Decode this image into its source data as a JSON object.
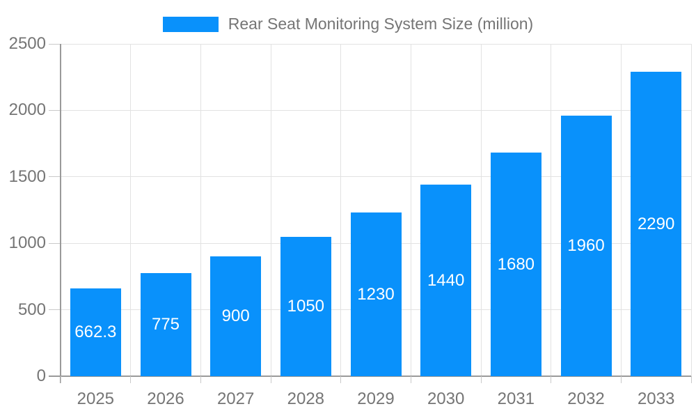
{
  "chart_data": {
    "type": "bar",
    "title": "Rear Seat Monitoring System Size (million)",
    "categories": [
      "2025",
      "2026",
      "2027",
      "2028",
      "2029",
      "2030",
      "2031",
      "2032",
      "2033"
    ],
    "values": [
      662.3,
      775,
      900,
      1050,
      1230,
      1440,
      1680,
      1960,
      2290
    ],
    "value_labels": [
      "662.3",
      "775",
      "900",
      "1050",
      "1230",
      "1440",
      "1680",
      "1960",
      "2290"
    ],
    "xlabel": "",
    "ylabel": "",
    "ylim": [
      0,
      2500
    ],
    "y_ticks": [
      0,
      500,
      1000,
      1500,
      2000,
      2500
    ],
    "y_tick_labels": [
      "0",
      "500",
      "1000",
      "1500",
      "2000",
      "2500"
    ],
    "grid": true,
    "legend_position": "top-center",
    "colors": {
      "bar": "#0991fb",
      "bar_label": "#ffffff",
      "axis_text": "#757575",
      "axis_line": "#9a9a9a",
      "gridline": "#e2e2e2",
      "tick": "#c9c9c9",
      "background": "#ffffff"
    }
  }
}
